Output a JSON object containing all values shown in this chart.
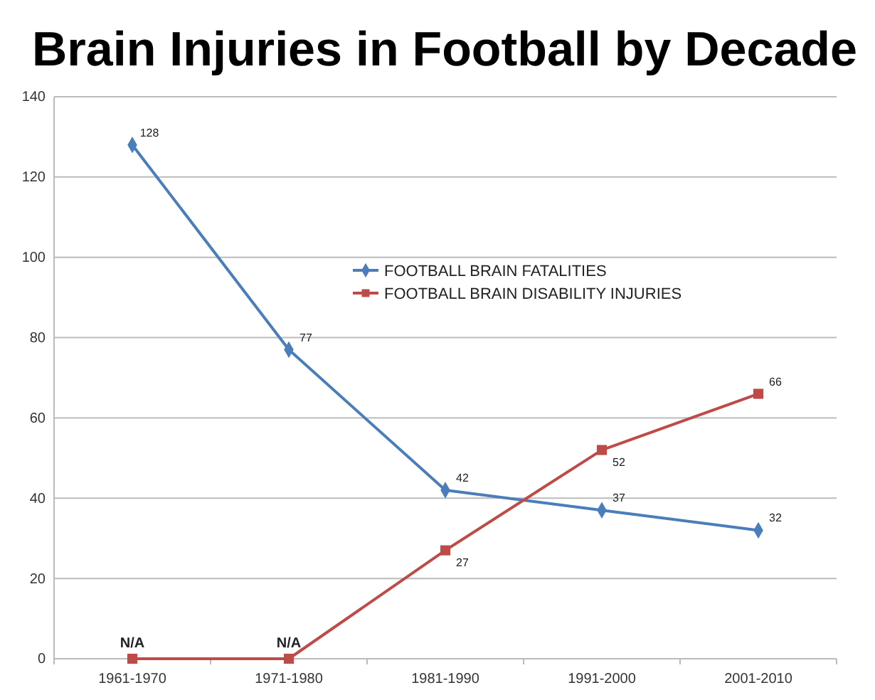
{
  "chart_data": {
    "type": "line",
    "title": "Brain Injuries in Football by Decade",
    "categories": [
      "1961-1970",
      "1971-1980",
      "1981-1990",
      "1991-2000",
      "2001-2010"
    ],
    "series": [
      {
        "name": "FOOTBALL BRAIN FATALITIES",
        "color": "#4a7ebb",
        "marker": "diamond",
        "values": [
          128,
          77,
          42,
          37,
          32
        ],
        "value_labels": [
          "128",
          "77",
          "42",
          "37",
          "32"
        ]
      },
      {
        "name": "FOOTBALL BRAIN DISABILITY INJURIES",
        "color": "#be4b48",
        "marker": "square",
        "values": [
          0,
          0,
          27,
          52,
          66
        ],
        "value_labels": [
          "N/A",
          "N/A",
          "27",
          "52",
          "66"
        ]
      }
    ],
    "ylim": [
      0,
      140
    ],
    "yticks": [
      0,
      20,
      40,
      60,
      80,
      100,
      120,
      140
    ],
    "grid": "y",
    "legend": "top",
    "line_style": "solid"
  }
}
